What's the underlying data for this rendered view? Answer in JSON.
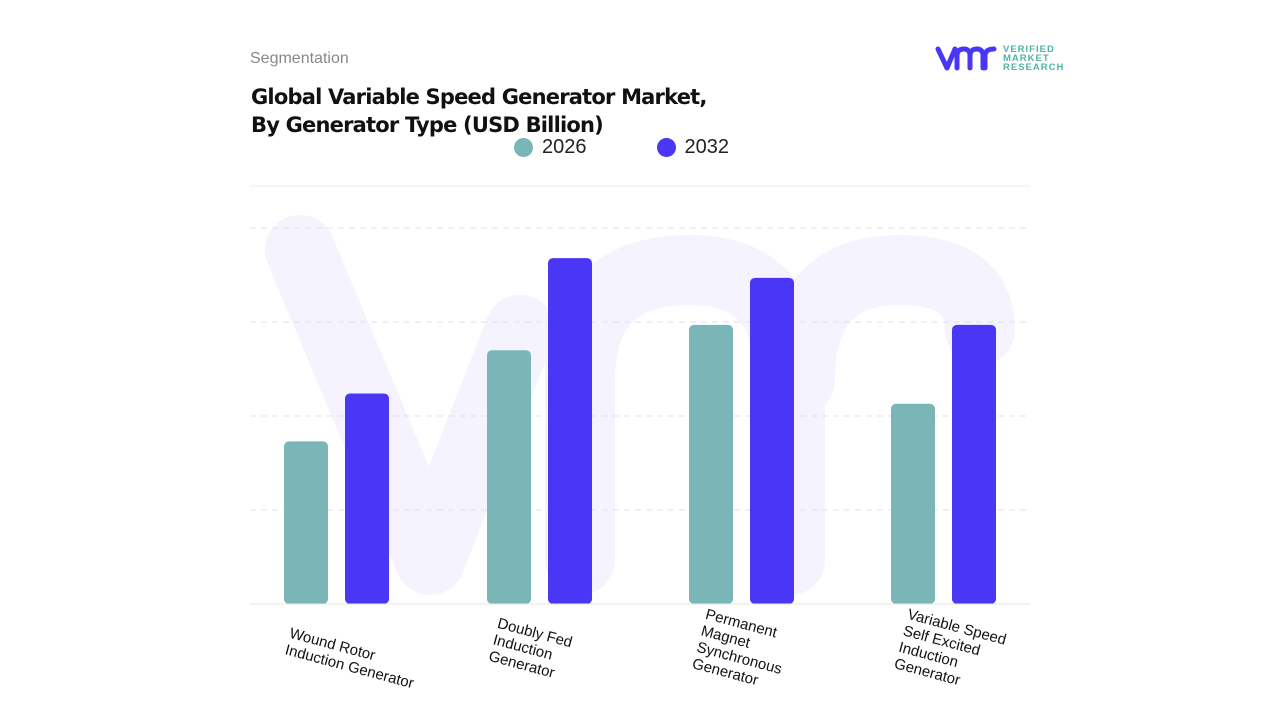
{
  "header": {
    "section": "Segmentation",
    "title_line1": "Global Variable Speed Generator Market,",
    "title_line2": "By Generator Type (USD Billion)"
  },
  "logo": {
    "line1": "VERIFIED",
    "line2": "MARKET",
    "line3": "RESEARCH",
    "mark": "vmr"
  },
  "chart_data": {
    "type": "bar",
    "title": "Global Variable Speed Generator Market, By Generator Type (USD Billion)",
    "categories": [
      "Wound Rotor Induction Generator",
      "Doubly Fed Induction Generator",
      "Permanent Magnet Synchronous Generator",
      "Variable Speed Self Excited Induction Generator"
    ],
    "category_labels": [
      [
        "Wound Rotor",
        "Induction Generator"
      ],
      [
        "Doubly Fed",
        "Induction",
        "Generator"
      ],
      [
        "Permanent",
        "Magnet",
        "Synchronous",
        "Generator"
      ],
      [
        "Variable Speed",
        "Self Excited",
        "Induction",
        "Generator"
      ]
    ],
    "series": [
      {
        "name": "2026",
        "color": "#7ab5b8",
        "values": [
          1.73,
          2.7,
          2.97,
          2.13
        ]
      },
      {
        "name": "2032",
        "color": "#4a36f5",
        "values": [
          2.24,
          3.68,
          3.47,
          2.97
        ]
      }
    ],
    "ylim": [
      0,
      4
    ],
    "grid": true,
    "legend": "top-center",
    "xlabel": "",
    "ylabel": ""
  }
}
